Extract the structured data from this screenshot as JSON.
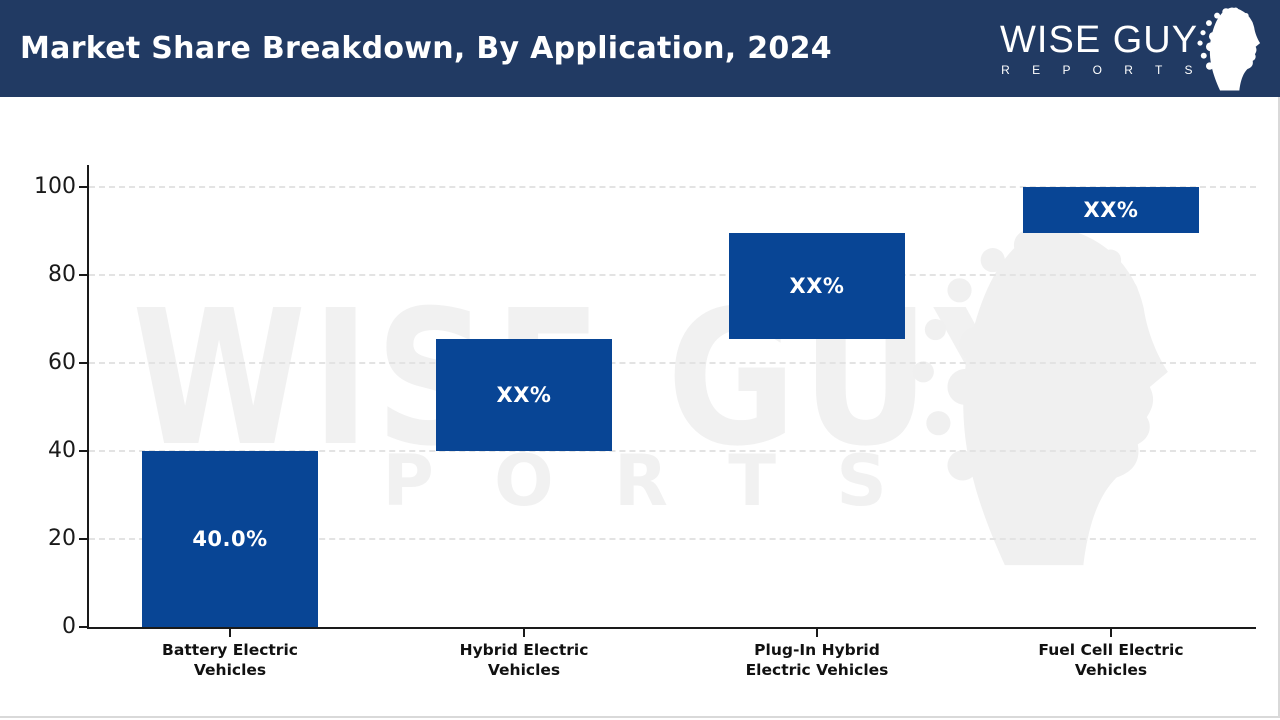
{
  "header": {
    "title": "Market Share Breakdown, By Application, 2024",
    "bg_color": "#213a63",
    "logo": {
      "wordmark": "WISE GUY",
      "subtext": "R E P O R T S"
    }
  },
  "watermark": {
    "text": "WISE GUY",
    "subtext": "R E P O R T S"
  },
  "chart_data": {
    "type": "bar",
    "subtype": "waterfall",
    "title": "Market Share Breakdown, By Application, 2024",
    "xlabel": "",
    "ylabel": "",
    "ylim": [
      0,
      105
    ],
    "yticks": [
      0,
      20,
      40,
      60,
      80,
      100
    ],
    "grid": "horizontal-dashed",
    "legend": "none",
    "bar_color": "#084595",
    "grid_color": "#e3e3e3",
    "axis_color": "#1a1a1a",
    "categories": [
      "Battery Electric Vehicles",
      "Hybrid Electric Vehicles",
      "Plug-In Hybrid Electric Vehicles",
      "Fuel Cell Electric Vehicles"
    ],
    "segments": [
      {
        "category": "Battery Electric Vehicles",
        "lines": [
          "Battery Electric",
          "Vehicles"
        ],
        "start": 0,
        "end": 40,
        "value": 40.0,
        "label": "40.0%"
      },
      {
        "category": "Hybrid Electric Vehicles",
        "lines": [
          "Hybrid Electric",
          "Vehicles"
        ],
        "start": 40,
        "end": 65.5,
        "value": 25.5,
        "label": "XX%"
      },
      {
        "category": "Plug-In Hybrid Electric Vehicles",
        "lines": [
          "Plug-In Hybrid",
          "Electric Vehicles"
        ],
        "start": 65.5,
        "end": 89.5,
        "value": 24.0,
        "label": "XX%"
      },
      {
        "category": "Fuel Cell Electric Vehicles",
        "lines": [
          "Fuel Cell Electric",
          "Vehicles"
        ],
        "start": 89.5,
        "end": 100,
        "value": 10.5,
        "label": "XX%"
      }
    ]
  }
}
